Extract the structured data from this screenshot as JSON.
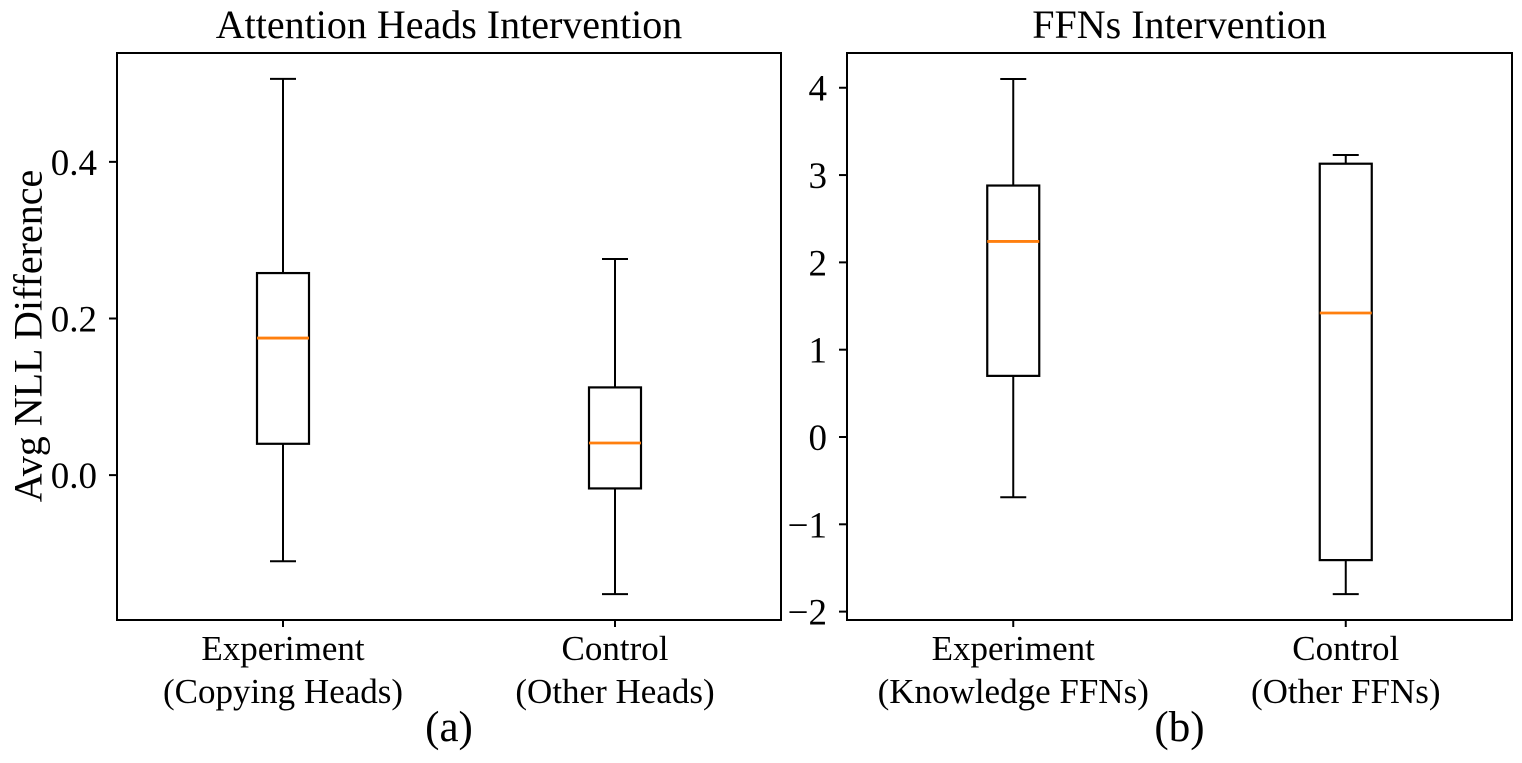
{
  "figure": {
    "background": "#ffffff",
    "line_color": "#000000",
    "median_color": "#ff7f0e"
  },
  "chart_data": [
    {
      "type": "boxplot",
      "title": "Attention Heads Intervention",
      "panel_caption": "(a)",
      "ylabel": "Avg NLL Difference",
      "ylim": [
        -0.185,
        0.539
      ],
      "grid": false,
      "legend": "none",
      "yticks": [
        {
          "value": 0.0,
          "label": "0.0"
        },
        {
          "value": 0.2,
          "label": "0.2"
        },
        {
          "value": 0.4,
          "label": "0.4"
        }
      ],
      "categories": [
        [
          "Experiment",
          "(Copying Heads)"
        ],
        [
          "Control",
          "(Other Heads)"
        ]
      ],
      "boxes": [
        {
          "whisker_low": -0.11,
          "q1": 0.04,
          "median": 0.175,
          "q3": 0.258,
          "whisker_high": 0.506
        },
        {
          "whisker_low": -0.152,
          "q1": -0.017,
          "median": 0.041,
          "q3": 0.112,
          "whisker_high": 0.276
        }
      ]
    },
    {
      "type": "boxplot",
      "title": "FFNs Intervention",
      "panel_caption": "(b)",
      "ylabel": "",
      "ylim": [
        -2.096,
        4.398
      ],
      "grid": false,
      "legend": "none",
      "yticks": [
        {
          "value": 4,
          "label": "4"
        },
        {
          "value": 3,
          "label": "3"
        },
        {
          "value": 2,
          "label": "2"
        },
        {
          "value": 1,
          "label": "1"
        },
        {
          "value": 0,
          "label": "0"
        },
        {
          "value": -1,
          "label": "−1"
        },
        {
          "value": -2,
          "label": "−2"
        }
      ],
      "categories": [
        [
          "Experiment",
          "(Knowledge FFNs)"
        ],
        [
          "Control",
          "(Other FFNs)"
        ]
      ],
      "boxes": [
        {
          "whisker_low": -0.69,
          "q1": 0.7,
          "median": 2.24,
          "q3": 2.88,
          "whisker_high": 4.1
        },
        {
          "whisker_low": -1.8,
          "q1": -1.41,
          "median": 1.42,
          "q3": 3.13,
          "whisker_high": 3.23
        }
      ]
    }
  ]
}
